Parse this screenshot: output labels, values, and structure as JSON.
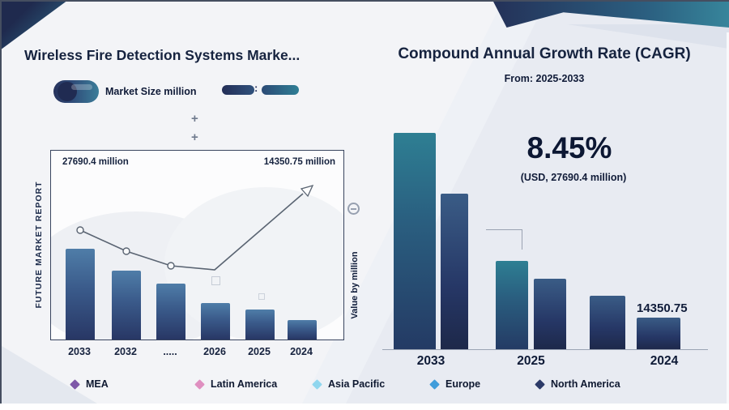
{
  "left_panel": {
    "title": "Wireless Fire Detection Systems Marke...",
    "legend": {
      "label": "Market Size million",
      "pill_separator": ":"
    },
    "chart": {
      "top_left_value": "27690.4 million",
      "top_right_value": "14350.75 million",
      "left_axis_label": "FUTURE MARKET REPORT",
      "right_axis_label": "Value by million",
      "categories": [
        "2033",
        "2032",
        ".....",
        "2026",
        "2025",
        "2024"
      ]
    }
  },
  "right_panel": {
    "title": "Compound Annual Growth Rate (CAGR)",
    "subtitle": "From: 2025-2033",
    "cagr_value": "8.45%",
    "cagr_note": "(USD, 27690.4 million)",
    "callout_value": "14350.75",
    "categories": [
      "2033",
      "2025",
      "2024"
    ]
  },
  "footer_legend": [
    {
      "label": "MEA",
      "color": "#7e57a8"
    },
    {
      "label": "Latin America",
      "color": "#df8fc0"
    },
    {
      "label": "Asia Pacific",
      "color": "#8fd6ee"
    },
    {
      "label": "Europe",
      "color": "#3f9ddb"
    },
    {
      "label": "North America",
      "color": "#2c3a68"
    }
  ],
  "decorations": {
    "plus": "+"
  },
  "colors": {
    "accent_navy": "#233158",
    "accent_teal": "#2f7e95",
    "title_text": "#16233f"
  },
  "chart_data": [
    {
      "type": "bar",
      "title": "Wireless Fire Detection Systems Market - Market Size million",
      "categories": [
        "2033",
        "2032",
        ".....",
        "2026",
        "2025",
        "2024"
      ],
      "values_pct_of_max": [
        100,
        76,
        62,
        40,
        33,
        21
      ],
      "labeled_values": {
        "2033": "27690.4 million",
        "start_value": "14350.75 million"
      },
      "ylabel": "Value by million",
      "overlay": "marker line declining 2033-2026 then hollow arrow rising to top right",
      "legend": [
        "Market Size million"
      ]
    },
    {
      "type": "bar",
      "title": "Compound Annual Growth Rate (CAGR)",
      "subtitle": "From: 2025-2033",
      "categories": [
        "2033",
        "2025",
        "2024"
      ],
      "groups_pct": [
        [
          100,
          72
        ],
        [
          41,
          33
        ],
        [
          25,
          15
        ]
      ],
      "cagr_pct": 8.45,
      "annotations": [
        "8.45%",
        "(USD, 27690.4 million)",
        "14350.75"
      ]
    }
  ]
}
